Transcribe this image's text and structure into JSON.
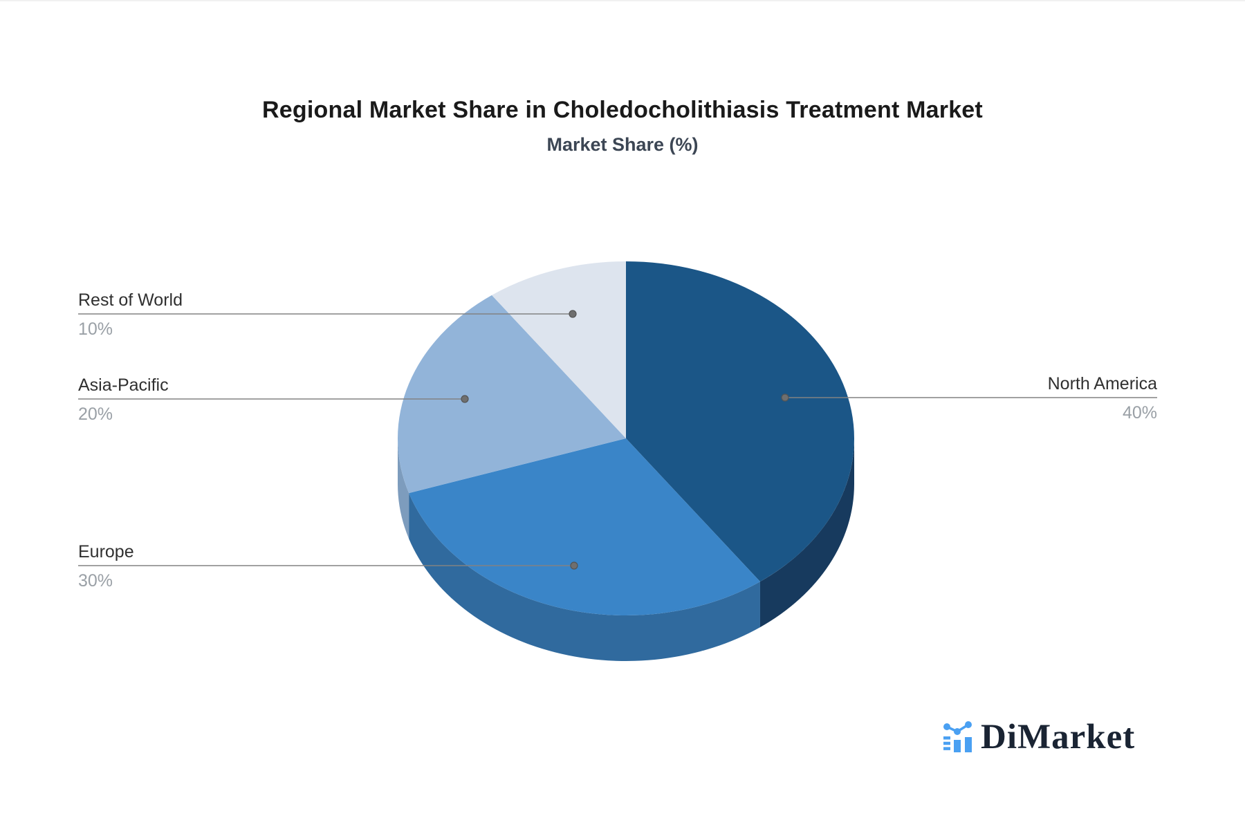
{
  "chart_data": {
    "type": "pie",
    "style": "3d",
    "title": "Regional Market Share in Choledocholithiasis Treatment Market",
    "subtitle": "Market Share (%)",
    "unit": "%",
    "direction": "clockwise",
    "start_angle_deg": 0,
    "legend_position": "callout-labels",
    "slices": [
      {
        "label": "North America",
        "value": 40,
        "display": "40%",
        "color": "#1b5687",
        "side_color": "#173a5e"
      },
      {
        "label": "Europe",
        "value": 30,
        "display": "30%",
        "color": "#3a85c8",
        "side_color": "#306a9e"
      },
      {
        "label": "Asia-Pacific",
        "value": 20,
        "display": "20%",
        "color": "#92b4d9",
        "side_color": "#7d9cbd"
      },
      {
        "label": "Rest of World",
        "value": 10,
        "display": "10%",
        "color": "#dde4ee",
        "side_color": "#b8c4d6"
      }
    ]
  },
  "branding": {
    "logo_text": "DiMarket",
    "logo_text_color": "#1a2433",
    "logo_accent": "#4aa0f2"
  },
  "colors": {
    "background": "#ffffff",
    "title": "#1a1a1a",
    "subtitle": "#3c4654",
    "label_name": "#303030",
    "label_value": "#9aa0a6",
    "leader_line": "#828282",
    "leader_dot": "#6f6f6f"
  }
}
